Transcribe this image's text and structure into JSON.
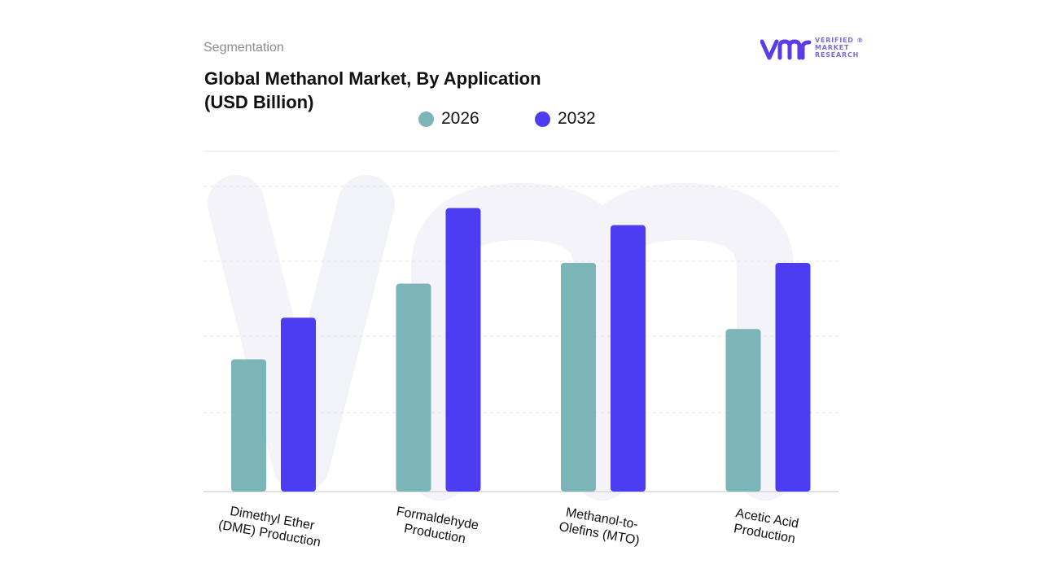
{
  "header": {
    "eyebrow": "Segmentation",
    "title_line1": "Global Methanol Market, By Application",
    "title_line2": "(USD Billion)"
  },
  "brand": {
    "lines": [
      "VERIFIED",
      "MARKET",
      "RESEARCH"
    ],
    "registered": "®",
    "logo_icon": "vmr-logo-icon",
    "colors": {
      "primary": "#5b3de8",
      "secondary": "#8a6fe0"
    }
  },
  "chart_data": {
    "type": "bar",
    "categories": [
      [
        "Dimethyl Ether",
        "(DME) Production"
      ],
      [
        "Formaldehyde",
        "Production"
      ],
      [
        "Methanol-to-",
        "Olefins (MTO)"
      ],
      [
        "Acetic Acid",
        "Production"
      ]
    ],
    "series": [
      {
        "name": "2026",
        "color": "#7bb5b8",
        "values": [
          3.5,
          5.5,
          6.05,
          4.3
        ]
      },
      {
        "name": "2032",
        "color": "#4c3cf2",
        "values": [
          4.6,
          7.5,
          7.05,
          6.05
        ]
      }
    ],
    "ylim": [
      0,
      9
    ],
    "grid": true,
    "legend_position": "top-center",
    "watermark": true
  }
}
